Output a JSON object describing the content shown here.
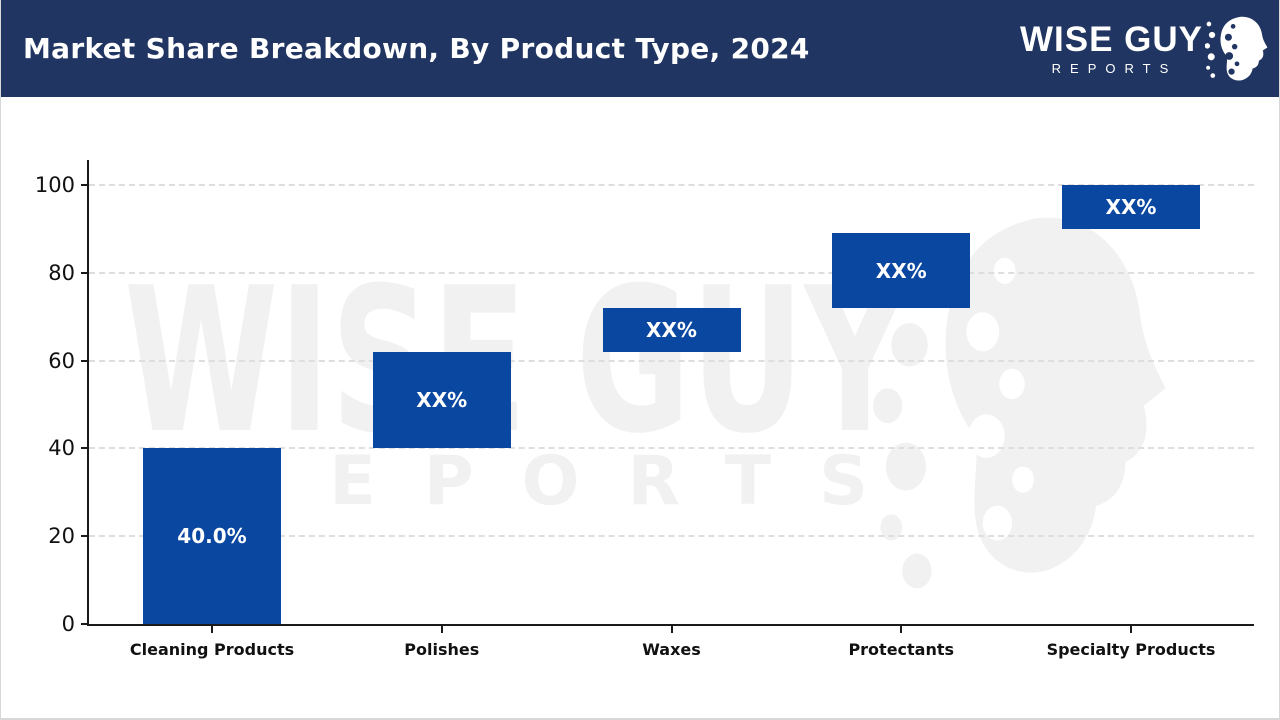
{
  "header": {
    "title": "Market Share Breakdown, By Product Type, 2024",
    "logo": {
      "wordmark": "WISE GUY",
      "subtitle": "REPORTS"
    }
  },
  "watermark": {
    "line1": "WISE GUY",
    "line2": "REPORTS"
  },
  "colors": {
    "header_bg": "#203561",
    "bar": "#0a47a0",
    "bar_label": "#ffffff",
    "grid": "#dedede",
    "axis": "#1a1a1a",
    "watermark": "#f1f1f1",
    "frame_border": "#d8d8d8"
  },
  "chart_data": {
    "type": "bar",
    "subtype": "waterfall",
    "title": "Market Share Breakdown, By Product Type, 2024",
    "categories": [
      "Cleaning Products",
      "Polishes",
      "Waxes",
      "Protectants",
      "Specialty Products"
    ],
    "bars": [
      {
        "category": "Cleaning Products",
        "start": 0,
        "end": 40,
        "label": "40.0%"
      },
      {
        "category": "Polishes",
        "start": 40,
        "end": 62,
        "label": "XX%"
      },
      {
        "category": "Waxes",
        "start": 62,
        "end": 72,
        "label": "XX%"
      },
      {
        "category": "Protectants",
        "start": 72,
        "end": 89,
        "label": "XX%"
      },
      {
        "category": "Specialty Products",
        "start": 90,
        "end": 100,
        "label": "XX%"
      }
    ],
    "yticks": [
      0,
      20,
      40,
      60,
      80,
      100
    ],
    "ylim": [
      0,
      107
    ],
    "xlabel": "",
    "ylabel": "",
    "grid": "horizontal-dashed",
    "legend": "none"
  }
}
